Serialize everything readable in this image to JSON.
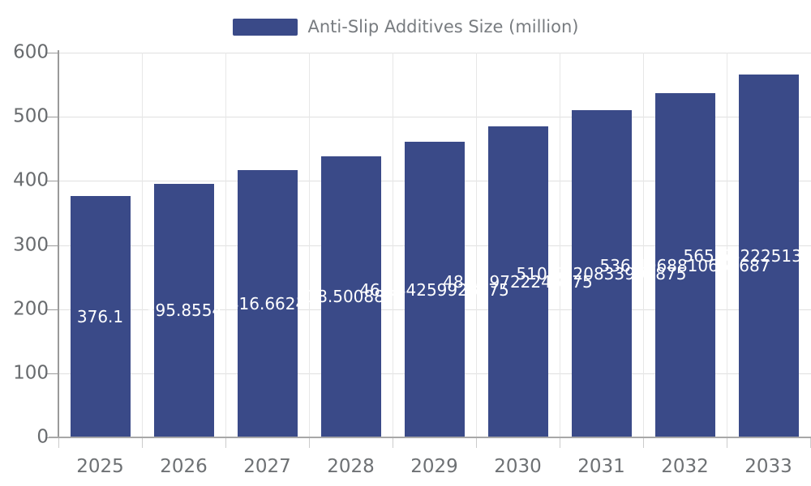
{
  "legend": {
    "label": "Anti-Slip Additives Size (million)"
  },
  "chart_data": {
    "type": "bar",
    "title": "Anti-Slip Additives Size (million)",
    "legend_position": "top-center",
    "categories": [
      "2025",
      "2026",
      "2027",
      "2028",
      "2029",
      "2030",
      "2031",
      "2032",
      "2033"
    ],
    "values": [
      376.1,
      395.8554,
      416.6624,
      438.5008875,
      460.44259926875,
      485.59722246875,
      510.5520833906875,
      536.4068810667687,
      565.5622251346875
    ],
    "value_labels": [
      "376.1",
      "395.8554",
      "416.6624",
      "438.5008875",
      "460.44259926875",
      "485.59722246875",
      "510.5520833906875",
      "536.4068810667687",
      "565.5622251346875"
    ],
    "xlabel": "",
    "ylabel": "",
    "ylim": [
      0,
      600
    ],
    "yticks": [
      0,
      100,
      200,
      300,
      400,
      500,
      600
    ],
    "grid": true,
    "bar_color": "#3a4a88",
    "value_label_color": "#ffffff",
    "axis_text_color": "#686b6e",
    "grid_color": "#e0e0e0",
    "axis_line_color": "#a8a8a8"
  }
}
